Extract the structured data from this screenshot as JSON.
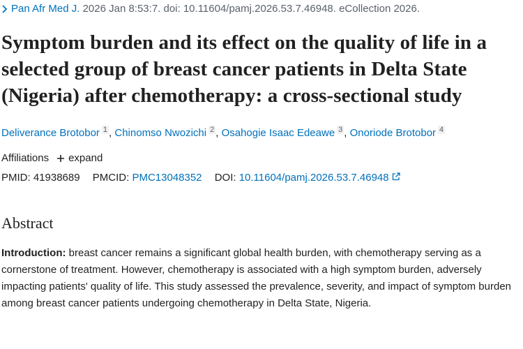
{
  "citation": {
    "journal": "Pan Afr Med J.",
    "details": "2026 Jan 8:53:7. doi: 10.11604/pamj.2026.53.7.46948. eCollection 2026."
  },
  "title": "Symptom burden and its effect on the quality of life in a selected group of breast cancer patients in Delta State (Nigeria) after chemotherapy: a cross-sectional study",
  "authors": [
    {
      "name": "Deliverance Brotobor",
      "affiliation": "1"
    },
    {
      "name": "Chinomso Nwozichi",
      "affiliation": "2"
    },
    {
      "name": "Osahogie Isaac Edeawe",
      "affiliation": "3"
    },
    {
      "name": "Onoriode Brotobor",
      "affiliation": "4"
    }
  ],
  "author_separator": ",",
  "affiliations": {
    "label": "Affiliations",
    "toggle": "expand"
  },
  "identifiers": {
    "pmid_label": "PMID:",
    "pmid": "41938689",
    "pmcid_label": "PMCID:",
    "pmcid": "PMC13048352",
    "doi_label": "DOI:",
    "doi": "10.11604/pamj.2026.53.7.46948"
  },
  "abstract": {
    "heading": "Abstract",
    "paragraphs": [
      {
        "label": "Introduction:",
        "text": "breast cancer remains a significant global health burden, with chemotherapy serving as a cornerstone of treatment. However, chemotherapy is associated with a high symptom burden, adversely impacting patients' quality of life. This study assessed the prevalence, severity, and impact of symptom burden among breast cancer patients undergoing chemotherapy in Delta State, Nigeria."
      }
    ]
  }
}
